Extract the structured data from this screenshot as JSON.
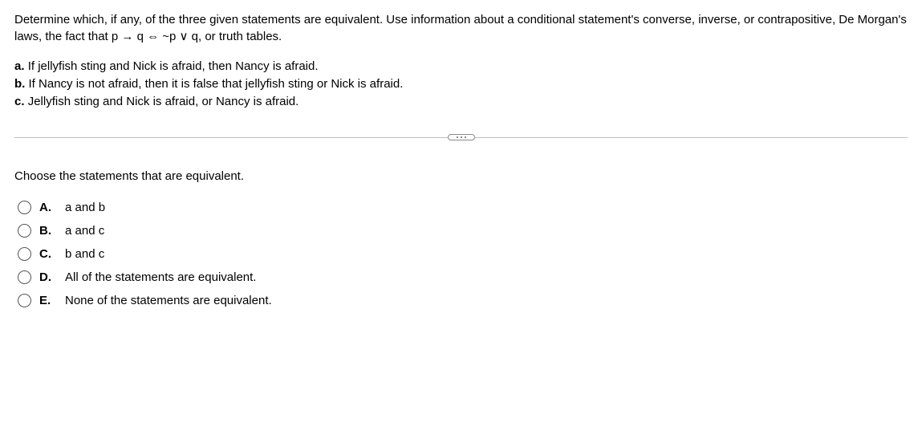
{
  "intro": "Determine which, if any, of the three given statements are equivalent. Use information about a conditional statement's converse, inverse, or contrapositive, De Morgan's laws, the fact that p → q ⇔ ~p ∨ q, or truth tables.",
  "statements": [
    {
      "letter": "a.",
      "text": "If jellyfish sting and Nick is afraid, then Nancy is afraid."
    },
    {
      "letter": "b.",
      "text": "If Nancy is not afraid, then it is false that jellyfish sting or Nick is afraid."
    },
    {
      "letter": "c.",
      "text": "Jellyfish sting and Nick is afraid, or Nancy is afraid."
    }
  ],
  "prompt": "Choose the statements that are equivalent.",
  "options": [
    {
      "letter": "A.",
      "text": "a and b"
    },
    {
      "letter": "B.",
      "text": "a and c"
    },
    {
      "letter": "C.",
      "text": "b and c"
    },
    {
      "letter": "D.",
      "text": "All of the statements are equivalent."
    },
    {
      "letter": "E.",
      "text": "None of the statements are equivalent."
    }
  ]
}
